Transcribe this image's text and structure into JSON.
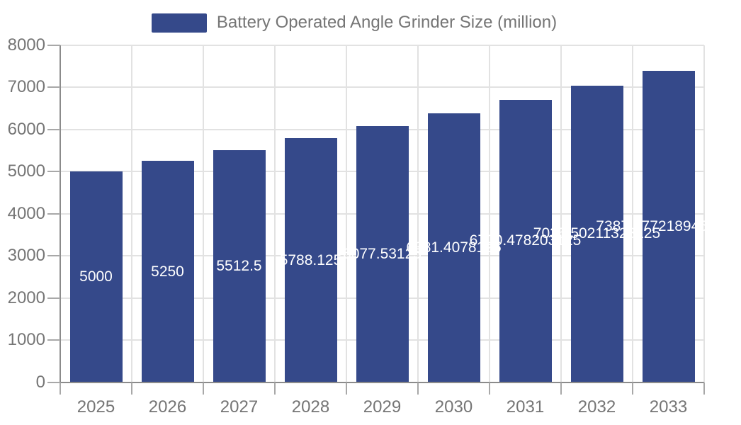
{
  "legend": {
    "label": "Battery Operated Angle Grinder Size (million)"
  },
  "chart_data": {
    "type": "bar",
    "title": "Battery Operated Angle Grinder Size (million)",
    "categories": [
      "2025",
      "2026",
      "2027",
      "2028",
      "2029",
      "2030",
      "2031",
      "2032",
      "2033"
    ],
    "series": [
      {
        "name": "Battery Operated Angle Grinder Size (million)",
        "values": [
          5000,
          5250,
          5512.5,
          5788.125,
          6077.53125,
          6381.4078125,
          6700.478203125,
          7035.50211328125,
          7387.277218945313
        ],
        "data_labels": [
          "5000",
          "5250",
          "5512.5",
          "5788.125",
          "6077.53125",
          "6381.4078125",
          "6700.478203125",
          "7035.50211328125",
          "7387.2772189453125"
        ]
      }
    ],
    "xlabel": "",
    "ylabel": "",
    "ylim": [
      0,
      8000
    ],
    "ytick_values": [
      0,
      1000,
      2000,
      3000,
      4000,
      5000,
      6000,
      7000,
      8000
    ],
    "ytick_labels": [
      "0",
      "1000",
      "2000",
      "3000",
      "4000",
      "5000",
      "6000",
      "7000",
      "8000"
    ],
    "grid": true,
    "legend_position": "top-center",
    "colors": {
      "bar": "#35498a",
      "grid_line": "#e2e2e2",
      "axis_line": "#8b8b8b",
      "tick_line": "#a8a8a8",
      "axis_text": "#757575",
      "legend_text": "#757575",
      "data_label_text": "#ffffff",
      "background": "#ffffff"
    }
  }
}
